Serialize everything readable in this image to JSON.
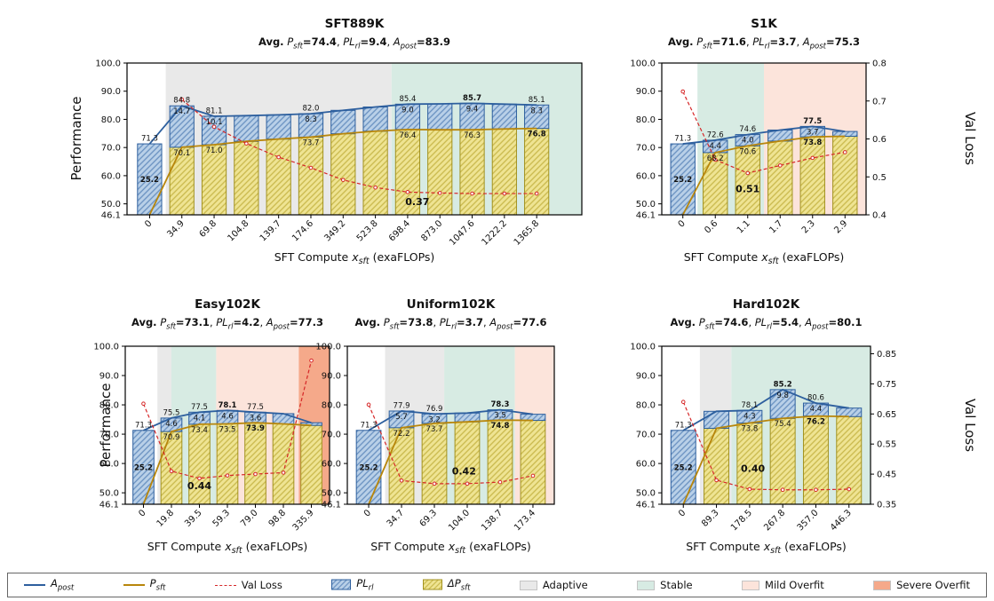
{
  "figure": {
    "ylabel_left": "Performance",
    "ylabel_right": "Val Loss",
    "xlabel": {
      "pre": "SFT Compute ",
      "var": "x",
      "sub": "sft",
      "post": " (exaFLOPs)"
    },
    "y_axis": {
      "min": 46.1,
      "max": 100.0,
      "tick_labels": [
        "100.0",
        "90.0",
        "80.0",
        "70.0",
        "60.0",
        "50.0",
        "46.1"
      ],
      "tick_values": [
        100.0,
        90.0,
        80.0,
        70.0,
        60.0,
        50.0,
        46.1
      ]
    },
    "vars": {
      "avg_label": "Avg.",
      "eq": "=",
      "sep": ", ",
      "p": "P",
      "p_sub": "sft",
      "pl": "PL",
      "pl_sub": "rl",
      "a": "A",
      "a_sub": "post"
    },
    "region_colors": {
      "adaptive": "#e9e9e9",
      "stable": "#d7ebe3",
      "mild": "#fce4db",
      "severe": "#f5a98a"
    },
    "colors": {
      "a_line": "#2d5f9e",
      "p_line": "#b8860b",
      "val_line": "#d62728",
      "annotation": "#d62728",
      "bar_blue_fill": "#b9d0e8",
      "bar_blue_hatch": "#6890c0",
      "bar_blue_edge": "#2d5f9e",
      "bar_yellow_fill": "#efe493",
      "bar_yellow_hatch": "#c9b84c",
      "bar_yellow_edge": "#a2921f"
    }
  },
  "chart_data": {
    "type": "bar",
    "description": "Five subplots: stacked bars (delta P_sft yellow hatched + PL_rl blue hatched above random baseline 46.1), A_post line (blue), P_sft line (olive), Val Loss dashed red line on right axis, shaded training regimes.",
    "charts": [
      {
        "id": "sft889k",
        "title": "SFT889K",
        "avg": {
          "p_sft": "74.4",
          "pl_rl": "9.4",
          "a_post": "83.9"
        },
        "x_range": [
          -0.7,
          13.4
        ],
        "regions": [
          {
            "from": 0.5,
            "to": 7.5,
            "type": "adaptive"
          },
          {
            "from": 7.5,
            "to": 13.4,
            "type": "stable"
          }
        ],
        "bars": [
          {
            "x": "0",
            "a": 71.3,
            "p": 46.1,
            "label_a": "71.3",
            "label_pl": "25.2",
            "bold_pl": true,
            "pl_center": true
          },
          {
            "x": "34.9",
            "a": 84.8,
            "p": 70.1,
            "label_a": "84.8",
            "label_pl": "14.7",
            "label_p": "70.1"
          },
          {
            "x": "69.8",
            "a": 81.1,
            "p": 71.0,
            "label_a": "81.1",
            "label_pl": "10.1",
            "label_p": "71.0"
          },
          {
            "x": "104.8",
            "a": 81.3,
            "p": 72.2
          },
          {
            "x": "139.7",
            "a": 81.6,
            "p": 73.0
          },
          {
            "x": "174.6",
            "a": 82.0,
            "p": 73.7,
            "label_a": "82.0",
            "label_pl": "8.3",
            "label_p": "73.7"
          },
          {
            "x": "349.2",
            "a": 83.2,
            "p": 74.9
          },
          {
            "x": "523.8",
            "a": 84.4,
            "p": 75.8
          },
          {
            "x": "698.4",
            "a": 85.4,
            "p": 76.4,
            "label_a": "85.4",
            "label_pl": "9.0",
            "label_p": "76.4"
          },
          {
            "x": "873.0",
            "a": 85.5,
            "p": 76.3
          },
          {
            "x": "1047.6",
            "a": 85.7,
            "p": 76.3,
            "label_a": "85.7",
            "bold_a": true,
            "label_pl": "9.4",
            "label_p": "76.3"
          },
          {
            "x": "1222.2",
            "a": 85.4,
            "p": 76.6
          },
          {
            "x": "1365.8",
            "a": 85.1,
            "p": 76.8,
            "label_a": "85.1",
            "label_pl": "8.3",
            "label_p": "76.8",
            "bold_p": true
          }
        ],
        "val_axis": {
          "min": 0.3,
          "max": 0.8,
          "tick_labels": [],
          "tick_values": []
        },
        "val_loss": [
          null,
          0.68,
          0.59,
          0.535,
          0.49,
          0.455,
          0.415,
          0.39,
          0.375,
          0.372,
          0.37,
          0.37,
          0.37
        ],
        "val_annotation": {
          "text": "0.37",
          "xi": 8.3,
          "y": 49.6
        }
      },
      {
        "id": "s1k",
        "title": "S1K",
        "avg": {
          "p_sft": "71.6",
          "pl_rl": "3.7",
          "a_post": "75.3"
        },
        "x_range": [
          -0.65,
          5.65
        ],
        "regions": [
          {
            "from": 0.45,
            "to": 2.5,
            "type": "stable"
          },
          {
            "from": 2.5,
            "to": 5.65,
            "type": "mild"
          }
        ],
        "bars": [
          {
            "x": "0",
            "a": 71.3,
            "p": 46.1,
            "label_a": "71.3",
            "label_pl": "25.2",
            "bold_pl": true,
            "pl_center": true
          },
          {
            "x": "0.6",
            "a": 72.6,
            "p": 68.2,
            "label_a": "72.6",
            "label_pl": "4.4",
            "label_p": "68.2"
          },
          {
            "x": "1.1",
            "a": 74.6,
            "p": 70.6,
            "label_a": "74.6",
            "label_pl": "4.0",
            "label_p": "70.6"
          },
          {
            "x": "1.7",
            "a": 76.2,
            "p": 72.3
          },
          {
            "x": "2.3",
            "a": 77.5,
            "p": 73.8,
            "label_a": "77.5",
            "bold_a": true,
            "label_pl": "3.7",
            "label_p": "73.8",
            "bold_p": true
          },
          {
            "x": "2.9",
            "a": 75.7,
            "p": 74.0
          }
        ],
        "val_axis": {
          "min": 0.4,
          "max": 0.8,
          "tick_labels": [
            "0.8",
            "0.7",
            "0.6",
            "0.5",
            "0.4"
          ],
          "tick_values": [
            0.8,
            0.7,
            0.6,
            0.5,
            0.4
          ]
        },
        "val_loss": [
          0.725,
          0.545,
          0.51,
          0.53,
          0.55,
          0.565
        ],
        "val_annotation": {
          "text": "0.51",
          "xi": 2.0,
          "y": 54.2
        }
      },
      {
        "id": "easy102k",
        "title": "Easy102K",
        "avg": {
          "p_sft": "73.1",
          "pl_rl": "4.2",
          "a_post": "77.3"
        },
        "x_range": [
          -0.65,
          6.65
        ],
        "regions": [
          {
            "from": 0.5,
            "to": 1.0,
            "type": "adaptive"
          },
          {
            "from": 1.0,
            "to": 2.6,
            "type": "stable"
          },
          {
            "from": 2.6,
            "to": 5.55,
            "type": "mild"
          },
          {
            "from": 5.55,
            "to": 6.65,
            "type": "severe"
          }
        ],
        "bars": [
          {
            "x": "0",
            "a": 71.3,
            "p": 46.1,
            "label_a": "71.3",
            "label_pl": "25.2",
            "bold_pl": true,
            "pl_center": true
          },
          {
            "x": "19.8",
            "a": 75.5,
            "p": 70.9,
            "label_a": "75.5",
            "label_pl": "4.6",
            "label_p": "70.9"
          },
          {
            "x": "39.5",
            "a": 77.5,
            "p": 73.4,
            "label_a": "77.5",
            "label_pl": "4.1",
            "label_p": "73.4"
          },
          {
            "x": "59.3",
            "a": 78.1,
            "p": 73.5,
            "label_a": "78.1",
            "bold_a": true,
            "label_pl": "4.6",
            "label_p": "73.5"
          },
          {
            "x": "79.0",
            "a": 77.5,
            "p": 73.9,
            "label_a": "77.5",
            "label_pl": "3.6",
            "label_p": "73.9",
            "bold_p": true
          },
          {
            "x": "98.8",
            "a": 77.0,
            "p": 73.5
          },
          {
            "x": "335.9",
            "a": 73.9,
            "p": 73.0
          }
        ],
        "val_axis": {
          "min": 0.35,
          "max": 0.9,
          "tick_labels": [],
          "tick_values": []
        },
        "val_loss": [
          0.7,
          0.465,
          0.44,
          0.45,
          0.455,
          0.46,
          0.85
        ],
        "val_annotation": {
          "text": "0.44",
          "xi": 2.0,
          "y": 51.2
        }
      },
      {
        "id": "uniform102k",
        "title": "Uniform102K",
        "avg": {
          "p_sft": "73.8",
          "pl_rl": "3.7",
          "a_post": "77.6"
        },
        "x_range": [
          -0.65,
          5.65
        ],
        "regions": [
          {
            "from": 0.5,
            "to": 2.3,
            "type": "adaptive"
          },
          {
            "from": 2.3,
            "to": 4.45,
            "type": "stable"
          },
          {
            "from": 4.45,
            "to": 5.65,
            "type": "mild"
          }
        ],
        "bars": [
          {
            "x": "0",
            "a": 71.3,
            "p": 46.1,
            "label_a": "71.3",
            "label_pl": "25.2",
            "bold_pl": true,
            "pl_center": true
          },
          {
            "x": "34.7",
            "a": 77.9,
            "p": 72.2,
            "label_a": "77.9",
            "label_pl": "5.7",
            "label_p": "72.2"
          },
          {
            "x": "69.3",
            "a": 76.9,
            "p": 73.7,
            "label_a": "76.9",
            "label_pl": "3.2",
            "label_p": "73.7"
          },
          {
            "x": "104.0",
            "a": 77.2,
            "p": 74.2
          },
          {
            "x": "138.7",
            "a": 78.3,
            "p": 74.8,
            "label_a": "78.3",
            "bold_a": true,
            "label_pl": "3.5",
            "label_p": "74.8",
            "bold_p": true
          },
          {
            "x": "173.4",
            "a": 76.8,
            "p": 74.7
          }
        ],
        "val_axis": {
          "min": 0.35,
          "max": 0.85,
          "tick_labels": [],
          "tick_values": []
        },
        "val_loss": [
          0.665,
          0.425,
          0.415,
          0.415,
          0.42,
          0.44
        ],
        "val_annotation": {
          "text": "0.42",
          "xi": 2.9,
          "y": 56.3
        }
      },
      {
        "id": "hard102k",
        "title": "Hard102K",
        "avg": {
          "p_sft": "74.6",
          "pl_rl": "5.4",
          "a_post": "80.1"
        },
        "x_range": [
          -0.65,
          5.65
        ],
        "regions": [
          {
            "from": 0.5,
            "to": 1.45,
            "type": "adaptive"
          },
          {
            "from": 1.45,
            "to": 5.65,
            "type": "stable"
          }
        ],
        "bars": [
          {
            "x": "0",
            "a": 71.3,
            "p": 46.1,
            "label_a": "71.3",
            "label_pl": "25.2",
            "bold_pl": true,
            "pl_center": true
          },
          {
            "x": "89.3",
            "a": 77.8,
            "p": 72.0
          },
          {
            "x": "178.5",
            "a": 78.1,
            "p": 73.8,
            "label_a": "78.1",
            "label_pl": "4.3",
            "label_p": "73.8"
          },
          {
            "x": "267.8",
            "a": 85.2,
            "p": 75.4,
            "label_a": "85.2",
            "bold_a": true,
            "label_pl": "9.8",
            "label_p": "75.4"
          },
          {
            "x": "357.0",
            "a": 80.6,
            "p": 76.2,
            "label_a": "80.6",
            "label_pl": "4.4",
            "label_p": "76.2",
            "bold_p": true
          },
          {
            "x": "446.3",
            "a": 78.9,
            "p": 76.0
          }
        ],
        "val_axis": {
          "min": 0.35,
          "max": 0.875,
          "tick_labels": [
            "0.85",
            "0.75",
            "0.65",
            "0.55",
            "0.45",
            "0.35"
          ],
          "tick_values": [
            0.85,
            0.75,
            0.65,
            0.55,
            0.45,
            0.35
          ]
        },
        "val_loss": [
          0.69,
          0.43,
          0.4,
          0.398,
          0.398,
          0.4
        ],
        "val_annotation": {
          "text": "0.40",
          "xi": 2.1,
          "y": 57.2
        }
      }
    ]
  },
  "legend": {
    "items": [
      {
        "kind": "line",
        "color": "#2d5f9e",
        "main": "A",
        "sub": "post"
      },
      {
        "kind": "line",
        "color": "#b8860b",
        "main": "P",
        "sub": "sft"
      },
      {
        "kind": "dash",
        "color": "#d62728",
        "label": "Val Loss"
      },
      {
        "kind": "hatch_blue",
        "main": "PL",
        "sub": "rl"
      },
      {
        "kind": "hatch_yellow",
        "main": "ΔP",
        "sub": "sft"
      },
      {
        "kind": "patch",
        "color": "#e9e9e9",
        "label": "Adaptive"
      },
      {
        "kind": "patch",
        "color": "#d7ebe3",
        "label": "Stable"
      },
      {
        "kind": "patch",
        "color": "#fce4db",
        "label": "Mild Overfit"
      },
      {
        "kind": "patch",
        "color": "#f5a98a",
        "label": "Severe Overfit"
      }
    ]
  }
}
